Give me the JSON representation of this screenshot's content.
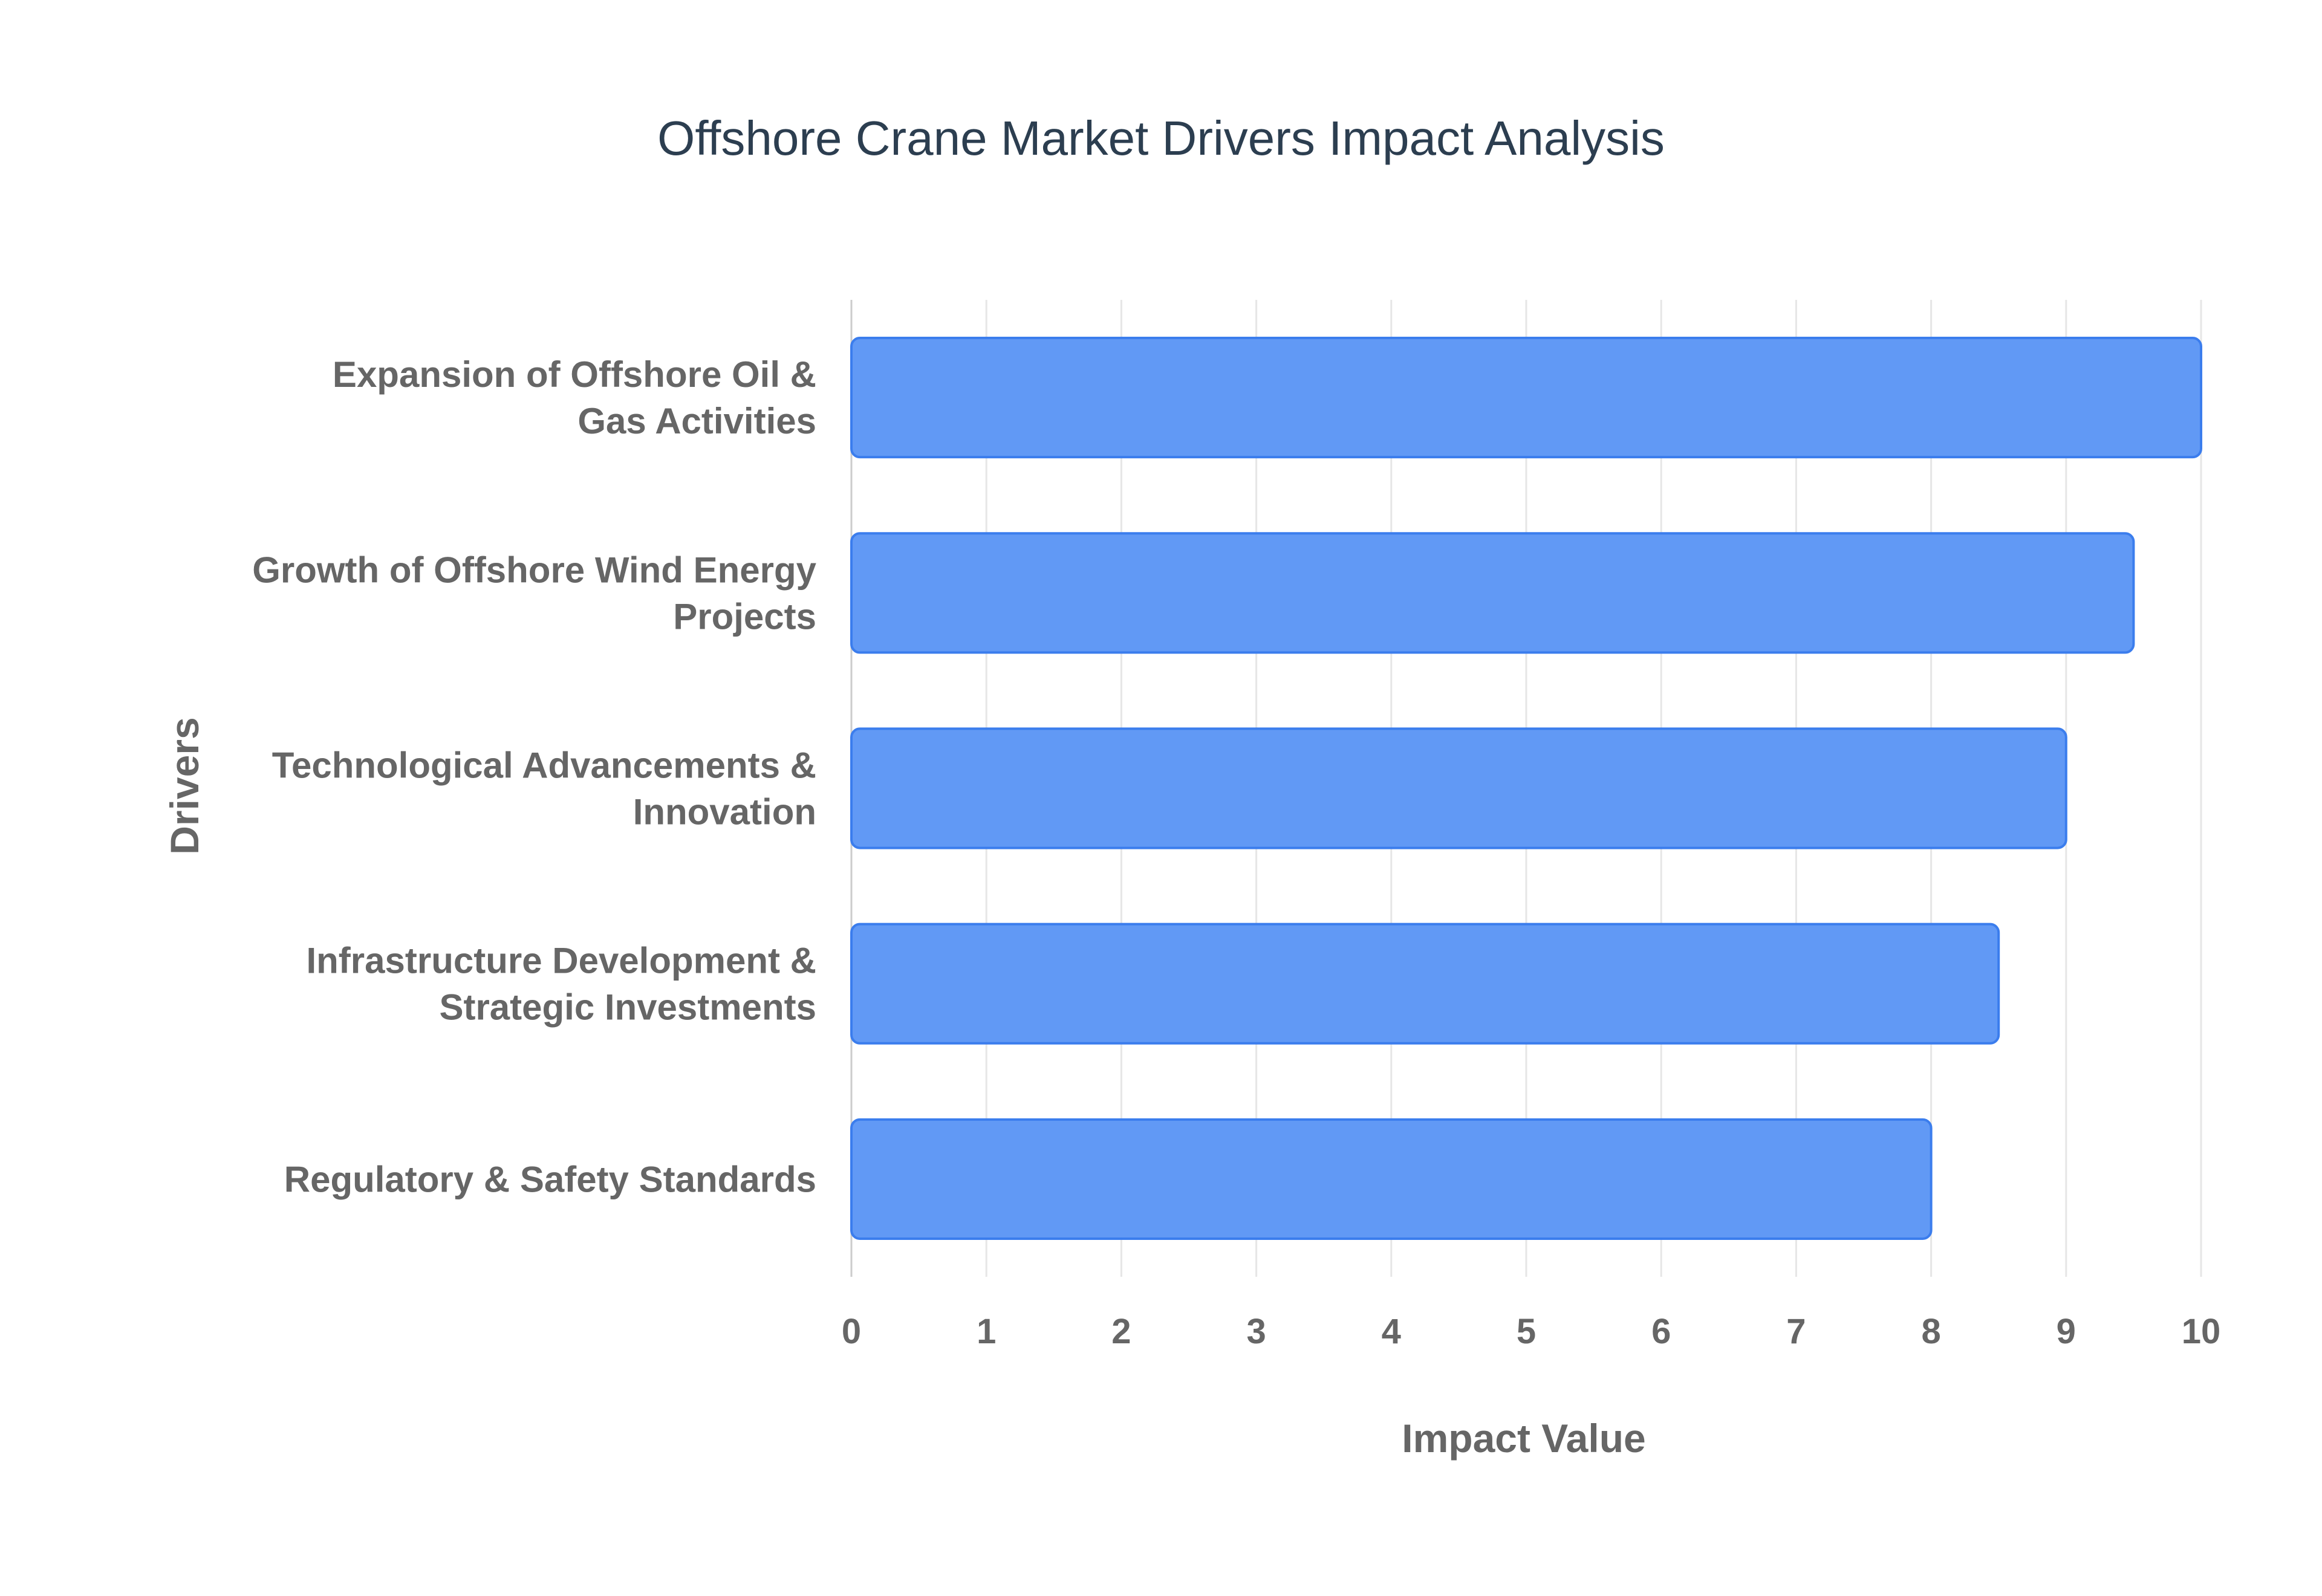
{
  "chart_data": {
    "type": "bar",
    "orientation": "horizontal",
    "title": "Offshore Crane Market Drivers Impact Analysis",
    "xlabel": "Impact Value",
    "ylabel": "Drivers",
    "categories": [
      [
        "Expansion of Offshore Oil &",
        "Gas Activities"
      ],
      [
        "Growth of Offshore Wind Energy",
        "Projects"
      ],
      [
        "Technological Advancements &",
        "Innovation"
      ],
      [
        "Infrastructure Development &",
        "Strategic Investments"
      ],
      [
        "Regulatory & Safety Standards"
      ]
    ],
    "values": [
      10,
      9.5,
      9,
      8.5,
      8
    ],
    "xlim": [
      0,
      10
    ],
    "xticks": [
      "0",
      "1",
      "2",
      "3",
      "4",
      "5",
      "6",
      "7",
      "8",
      "9",
      "10"
    ],
    "grid": true,
    "legend": "none",
    "colors": {
      "bar_fill": "#6199f5",
      "bar_stroke": "#3b7ded",
      "grid": "#e6e6e6",
      "axis": "#cccccc",
      "title": "#2c3e50",
      "label": "#666666"
    }
  }
}
